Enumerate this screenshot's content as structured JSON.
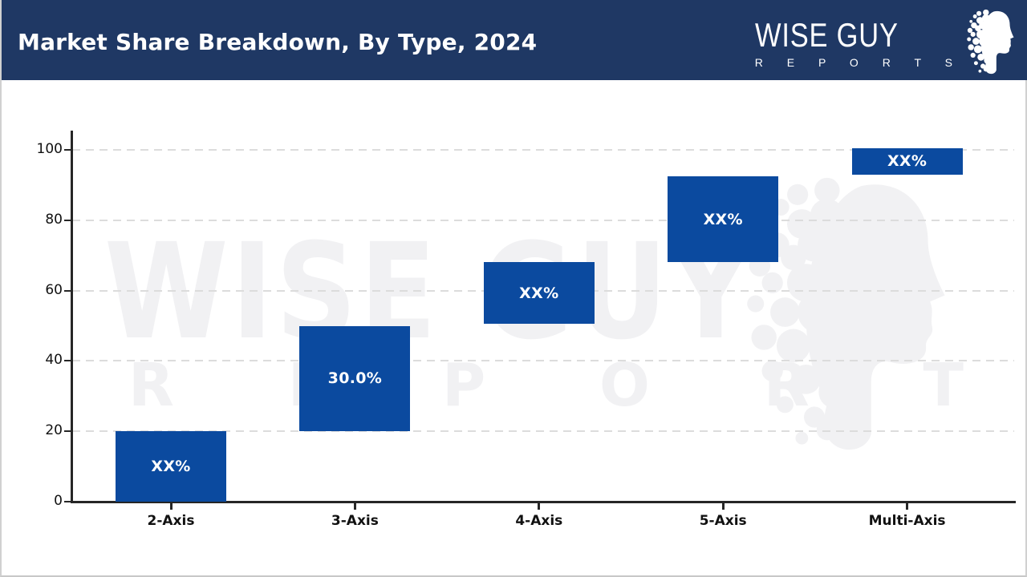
{
  "header": {
    "title": "Market Share Breakdown, By Type, 2024",
    "bg_color": "#1f3864",
    "logo": {
      "line1": "WISE GUY",
      "line2": "R E P O R T S",
      "face_icon": "dotted-head-profile"
    }
  },
  "watermark": {
    "line1": "WISE GUY",
    "line2": "R E P O R T S",
    "face_icon": "dotted-head-profile",
    "color": "#f1f1f3"
  },
  "chart_data": {
    "type": "bar",
    "subtype": "floating-waterfall",
    "title": "Market Share Breakdown, By Type, 2024",
    "categories": [
      "2-Axis",
      "3-Axis",
      "4-Axis",
      "5-Axis",
      "Multi-Axis"
    ],
    "segments": [
      {
        "category": "2-Axis",
        "from": 0,
        "to": 20,
        "label": "XX%"
      },
      {
        "category": "3-Axis",
        "from": 20,
        "to": 50,
        "label": "30.0%"
      },
      {
        "category": "4-Axis",
        "from": 50.5,
        "to": 68,
        "label": "XX%"
      },
      {
        "category": "5-Axis",
        "from": 68,
        "to": 92.5,
        "label": "XX%"
      },
      {
        "category": "Multi-Axis",
        "from": 93,
        "to": 100.5,
        "label": "XX%"
      }
    ],
    "y_ticks": [
      0,
      20,
      40,
      60,
      80,
      100
    ],
    "ylim": [
      0,
      105
    ],
    "xlabel": "",
    "ylabel": "",
    "grid": "dashed-horizontal",
    "legend": "none",
    "bar_color": "#0b4a9f",
    "bar_label_color": "#ffffff",
    "axis_color": "#262626",
    "grid_color": "#dcdcdc"
  }
}
